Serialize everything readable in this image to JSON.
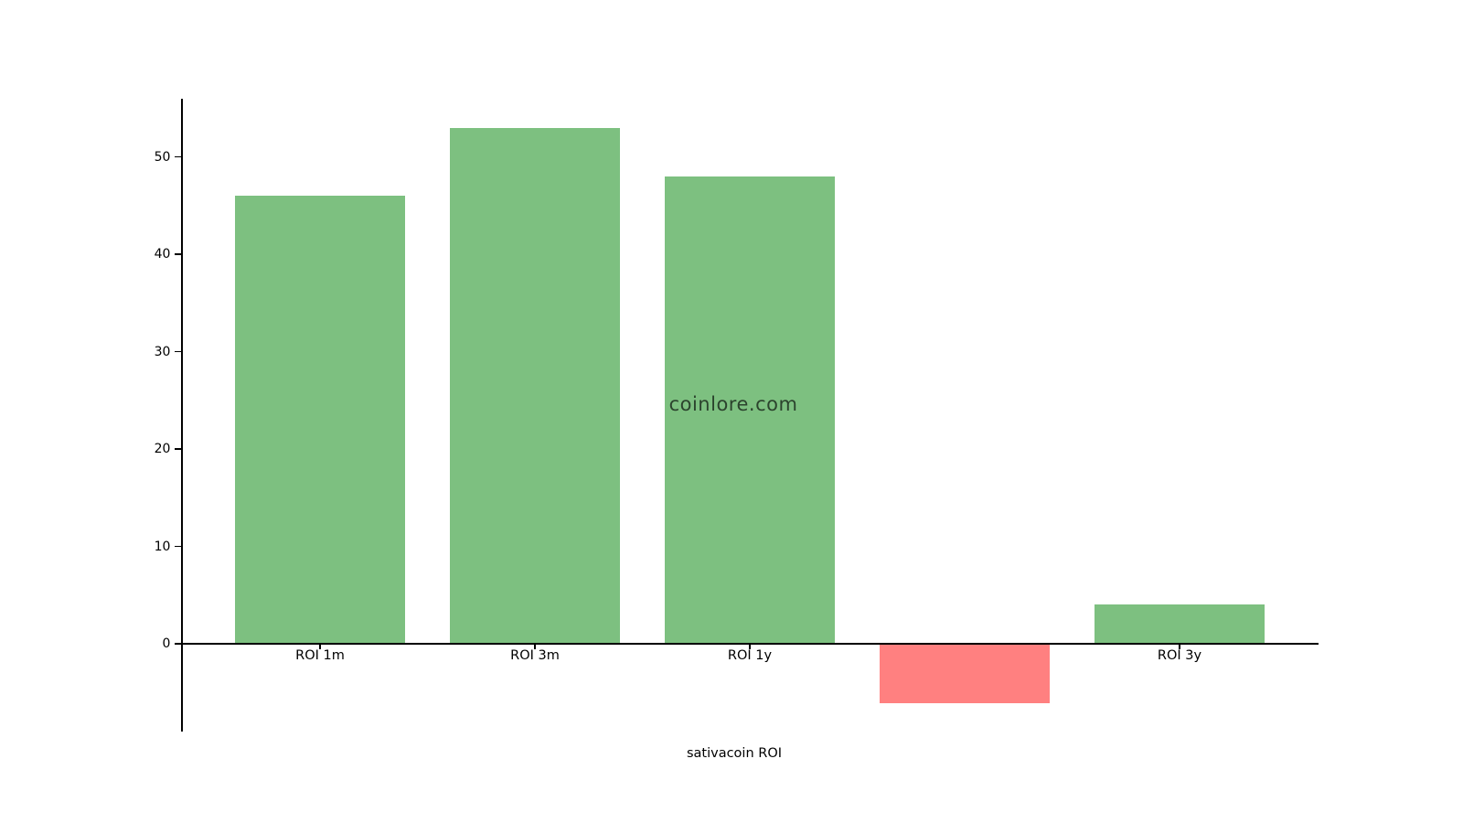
{
  "watermark": "coinlore.com",
  "footer_title": "sativacoin ROI",
  "colors": {
    "positive_bar": "#7dc080",
    "negative_bar": "#ff8080",
    "axis": "#000000",
    "text": "#000000",
    "watermark_text": "rgba(0,0,0,0.65)"
  },
  "chart_data": {
    "type": "bar",
    "title": "sativacoin ROI",
    "xlabel": "",
    "ylabel": "",
    "categories": [
      "ROI 1m",
      "ROI 3m",
      "ROI 1y",
      "",
      "ROI 3y"
    ],
    "values": [
      46,
      53,
      48,
      -6,
      4
    ],
    "bar_colors": [
      "#7dc080",
      "#7dc080",
      "#7dc080",
      "#ff8080",
      "#7dc080"
    ],
    "yticks": [
      0,
      10,
      20,
      30,
      40,
      50
    ],
    "ylim": [
      -8.9,
      56
    ],
    "grid": false,
    "legend": null,
    "note_fourth_label_hidden_behind_negative_bar": true
  }
}
